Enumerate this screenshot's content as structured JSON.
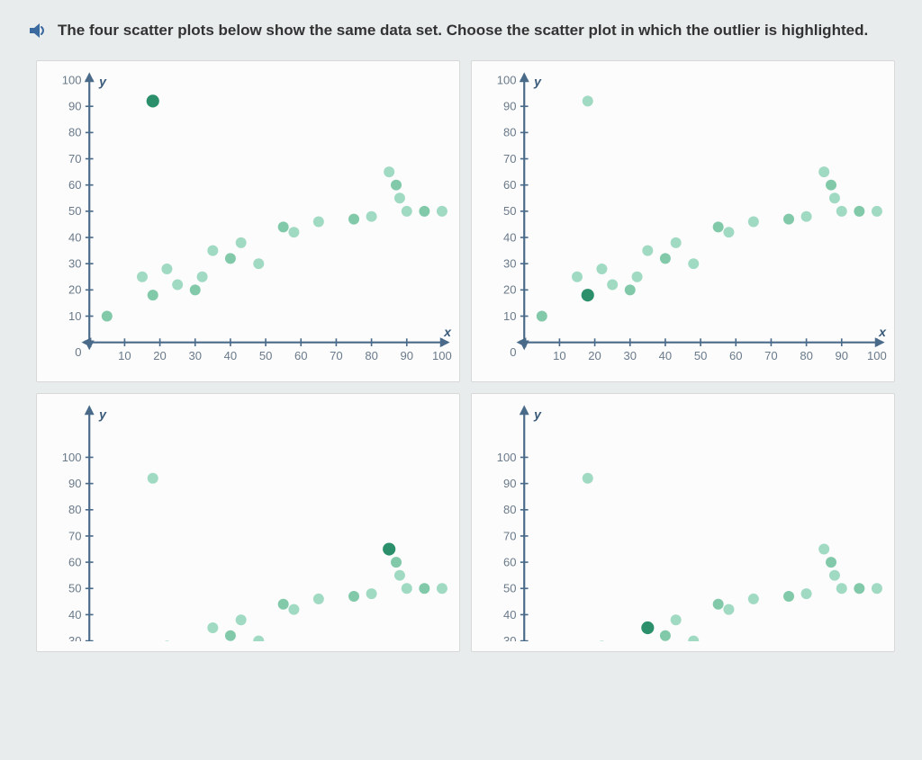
{
  "question": {
    "text": "The four scatter plots below show the same data set. Choose the scatter plot in which the outlier is highlighted."
  },
  "chart_common": {
    "xlim": [
      0,
      100
    ],
    "ylim": [
      0,
      100
    ],
    "xtick_step": 10,
    "ytick_step": 10,
    "x_axis_label": "x",
    "y_axis_label": "y",
    "axis_color": "#4a6a8a",
    "point_color": "#8fd4b8",
    "point_color_dark": "#6bbf9a",
    "highlight_color": "#2a8f6a",
    "background_color": "#fcfcfc",
    "border_color": "#d8d8d8",
    "point_radius": 5.5,
    "highlight_radius": 6.5,
    "tick_label_color": "#6a7a8a"
  },
  "data_points": [
    {
      "x": 5,
      "y": 10
    },
    {
      "x": 15,
      "y": 25
    },
    {
      "x": 18,
      "y": 92
    },
    {
      "x": 18,
      "y": 18
    },
    {
      "x": 22,
      "y": 28
    },
    {
      "x": 25,
      "y": 22
    },
    {
      "x": 30,
      "y": 20
    },
    {
      "x": 32,
      "y": 25
    },
    {
      "x": 35,
      "y": 35
    },
    {
      "x": 40,
      "y": 32
    },
    {
      "x": 43,
      "y": 38
    },
    {
      "x": 48,
      "y": 30
    },
    {
      "x": 55,
      "y": 44
    },
    {
      "x": 58,
      "y": 42
    },
    {
      "x": 65,
      "y": 46
    },
    {
      "x": 75,
      "y": 47
    },
    {
      "x": 80,
      "y": 48
    },
    {
      "x": 85,
      "y": 65
    },
    {
      "x": 87,
      "y": 60
    },
    {
      "x": 88,
      "y": 55
    },
    {
      "x": 90,
      "y": 50
    },
    {
      "x": 95,
      "y": 50
    },
    {
      "x": 100,
      "y": 50
    }
  ],
  "plots": [
    {
      "id": "plot-a",
      "highlight_index": 2,
      "clipped": false
    },
    {
      "id": "plot-b",
      "highlight_index": 3,
      "clipped": false
    },
    {
      "id": "plot-c",
      "highlight_index": 17,
      "clipped": true
    },
    {
      "id": "plot-d",
      "highlight_index": 8,
      "clipped": true
    }
  ]
}
